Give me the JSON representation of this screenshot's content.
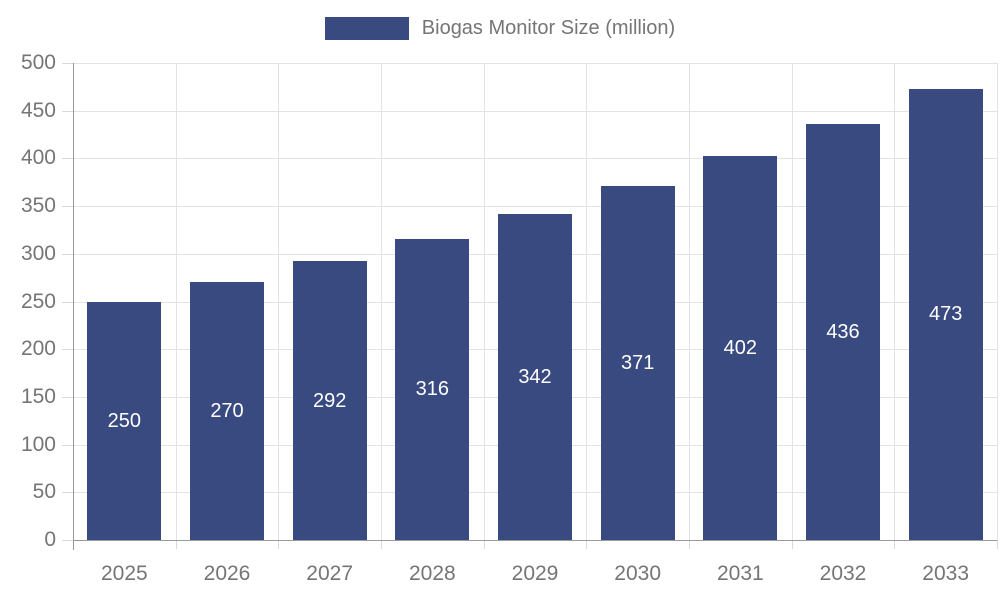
{
  "legend": {
    "label": "Biogas Monitor Size (million)"
  },
  "chart_data": {
    "type": "bar",
    "title": "",
    "xlabel": "",
    "ylabel": "",
    "categories": [
      "2025",
      "2026",
      "2027",
      "2028",
      "2029",
      "2030",
      "2031",
      "2032",
      "2033"
    ],
    "series": [
      {
        "name": "Biogas Monitor Size (million)",
        "values": [
          250,
          270,
          292,
          316,
          342,
          371,
          402,
          436,
          473
        ]
      }
    ],
    "value_labels_shown": true,
    "ylim": [
      0,
      500
    ],
    "ytick_step": 50,
    "grid": true,
    "legend_position": "top-center",
    "colors": {
      "bar": "#394a80",
      "grid": "#e3e3e3",
      "axis": "#999999",
      "tick": "#d9d9d9",
      "axis_text": "#757575",
      "value_text": "#ffffff",
      "background": "#ffffff"
    }
  }
}
